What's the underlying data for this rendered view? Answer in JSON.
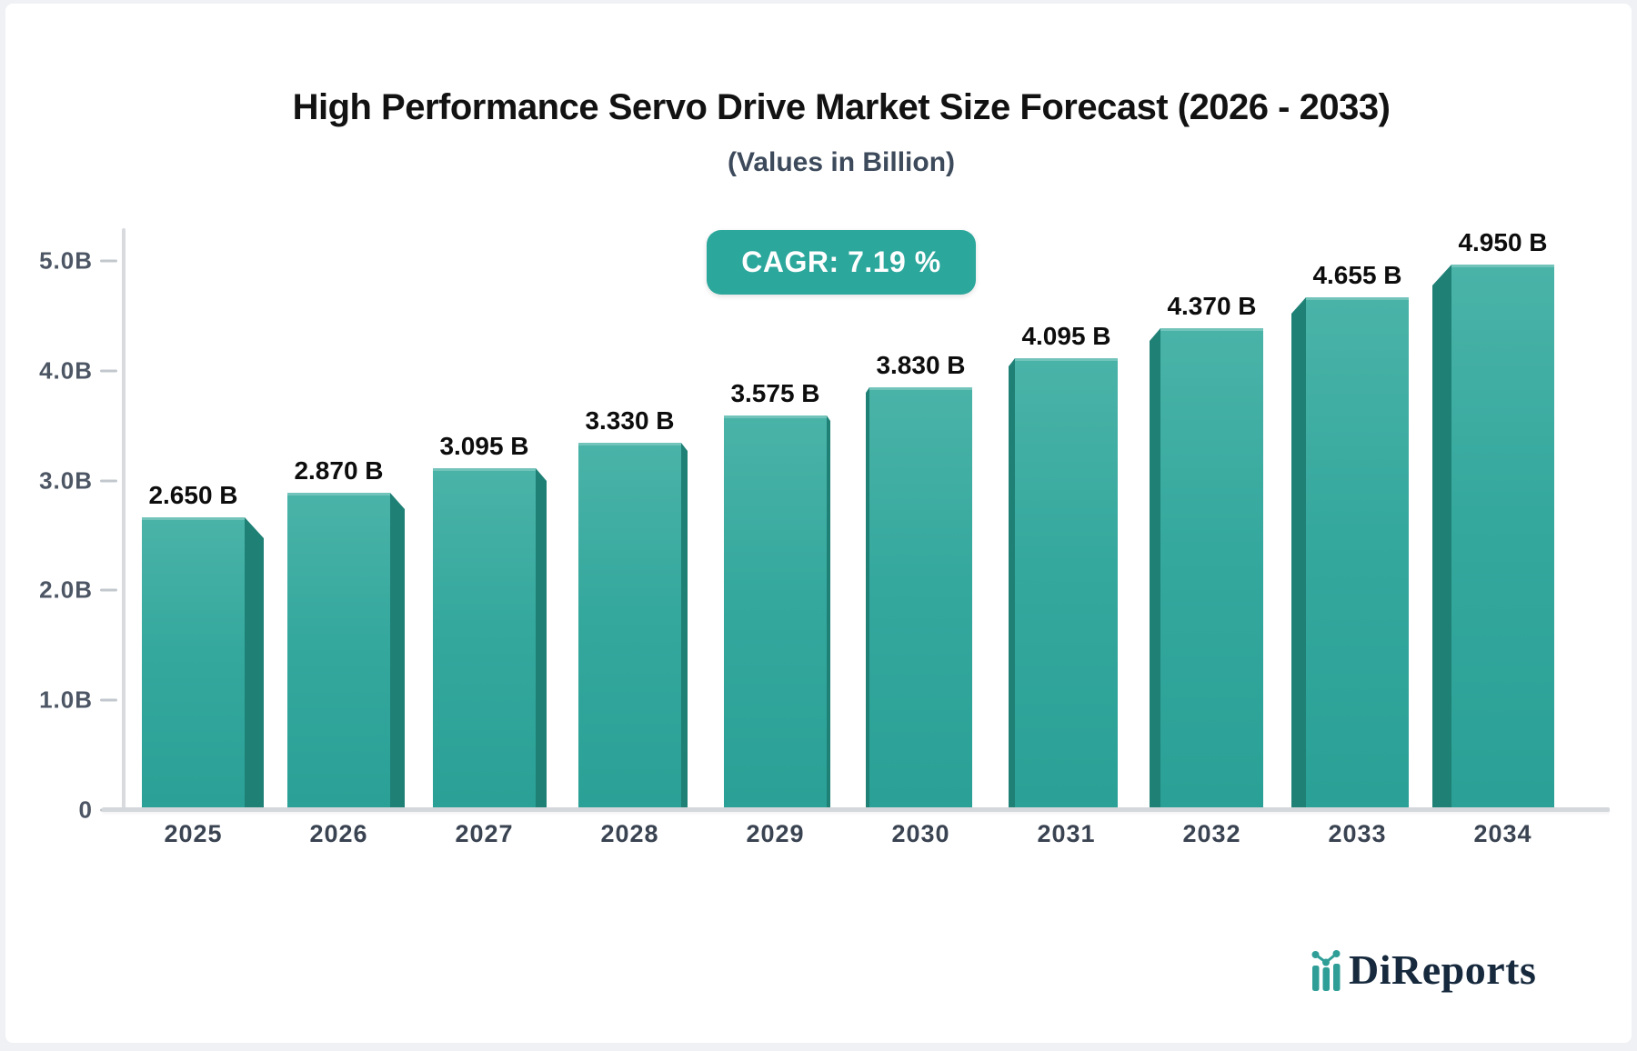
{
  "page": {
    "background": "#eff1f4",
    "card_background": "#ffffff"
  },
  "header": {
    "title": "High Performance Servo Drive Market Size Forecast (2026 - 2033)",
    "subtitle": "(Values in Billion)"
  },
  "badge": {
    "label": "CAGR: 7.19 %",
    "bg": "#2ba79c",
    "text_color": "#ffffff"
  },
  "chart_data": {
    "type": "bar",
    "style": "3d-perspective-bars",
    "title": "High Performance Servo Drive Market Size Forecast (2026 - 2033)",
    "subtitle": "(Values in Billion)",
    "categories": [
      "2025",
      "2026",
      "2027",
      "2028",
      "2029",
      "2030",
      "2031",
      "2032",
      "2033",
      "2034"
    ],
    "values": [
      2.65,
      2.87,
      3.095,
      3.33,
      3.575,
      3.83,
      4.095,
      4.37,
      4.655,
      4.95
    ],
    "value_labels": [
      "2.650 B",
      "2.870 B",
      "3.095 B",
      "3.330 B",
      "3.575 B",
      "3.830 B",
      "4.095 B",
      "4.370 B",
      "4.655 B",
      "4.950 B"
    ],
    "unit": "Billion",
    "xlabel": "",
    "ylabel": "",
    "ylim": [
      0,
      5.0
    ],
    "ytick_labels": [
      "5.0B",
      "4.0B",
      "3.0B",
      "2.0B",
      "1.0B",
      "0"
    ],
    "ytick_values": [
      5.0,
      4.0,
      3.0,
      2.0,
      1.0,
      0
    ],
    "grid": false,
    "legend": false,
    "bar_color_top": "#4ab3a8",
    "bar_color_bottom": "#2aa096",
    "bar_side_color": "#1f8076",
    "axis_color": "#d8dade",
    "cagr_annotation": "CAGR: 7.19 %"
  },
  "footer": {
    "logo_text": "DiReports",
    "logo_icon": "bar-chart-trend-icon",
    "logo_text_color": "#16293d",
    "logo_icon_color": "#2f9e97"
  }
}
